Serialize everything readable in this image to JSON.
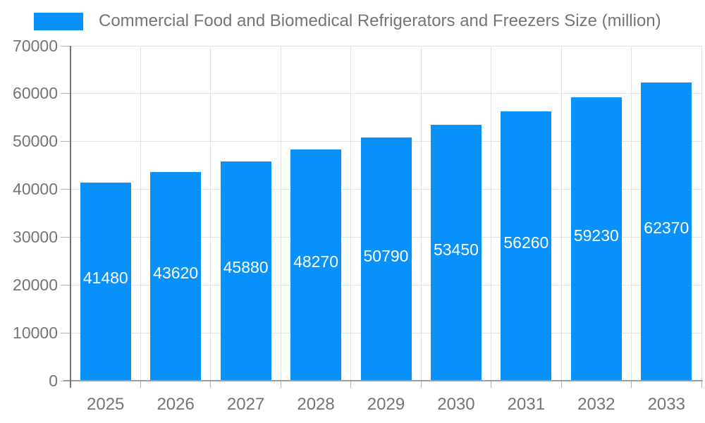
{
  "chart_data": {
    "type": "bar",
    "title": "Commercial Food and Biomedical Refrigerators and Freezers Size (million)",
    "categories": [
      "2025",
      "2026",
      "2027",
      "2028",
      "2029",
      "2030",
      "2031",
      "2032",
      "2033"
    ],
    "values": [
      41480,
      43620,
      45880,
      48270,
      50790,
      53450,
      56260,
      59230,
      62370
    ],
    "series": [
      {
        "name": "Commercial Food and Biomedical Refrigerators and Freezers Size (million)",
        "values": [
          41480,
          43620,
          45880,
          48270,
          50790,
          53450,
          56260,
          59230,
          62370
        ]
      }
    ],
    "xlabel": "",
    "ylabel": "",
    "ylim": [
      0,
      70000
    ],
    "yticks": [
      0,
      10000,
      20000,
      30000,
      40000,
      50000,
      60000,
      70000
    ],
    "ytick_labels": [
      "0",
      "10000",
      "20000",
      "30000",
      "40000",
      "50000",
      "60000",
      "70000"
    ],
    "grid": true,
    "legend_position": "top-left",
    "value_label_position": "inside-center"
  },
  "colors": {
    "bar": "#0991fb",
    "value_label": "#ffffff",
    "grid": "#e3e3e3",
    "tick": "#b3b3b3",
    "axis_baseline": "#9e9e9e",
    "axis_vertical": "#757575",
    "text": "#757575",
    "background": "#ffffff"
  }
}
